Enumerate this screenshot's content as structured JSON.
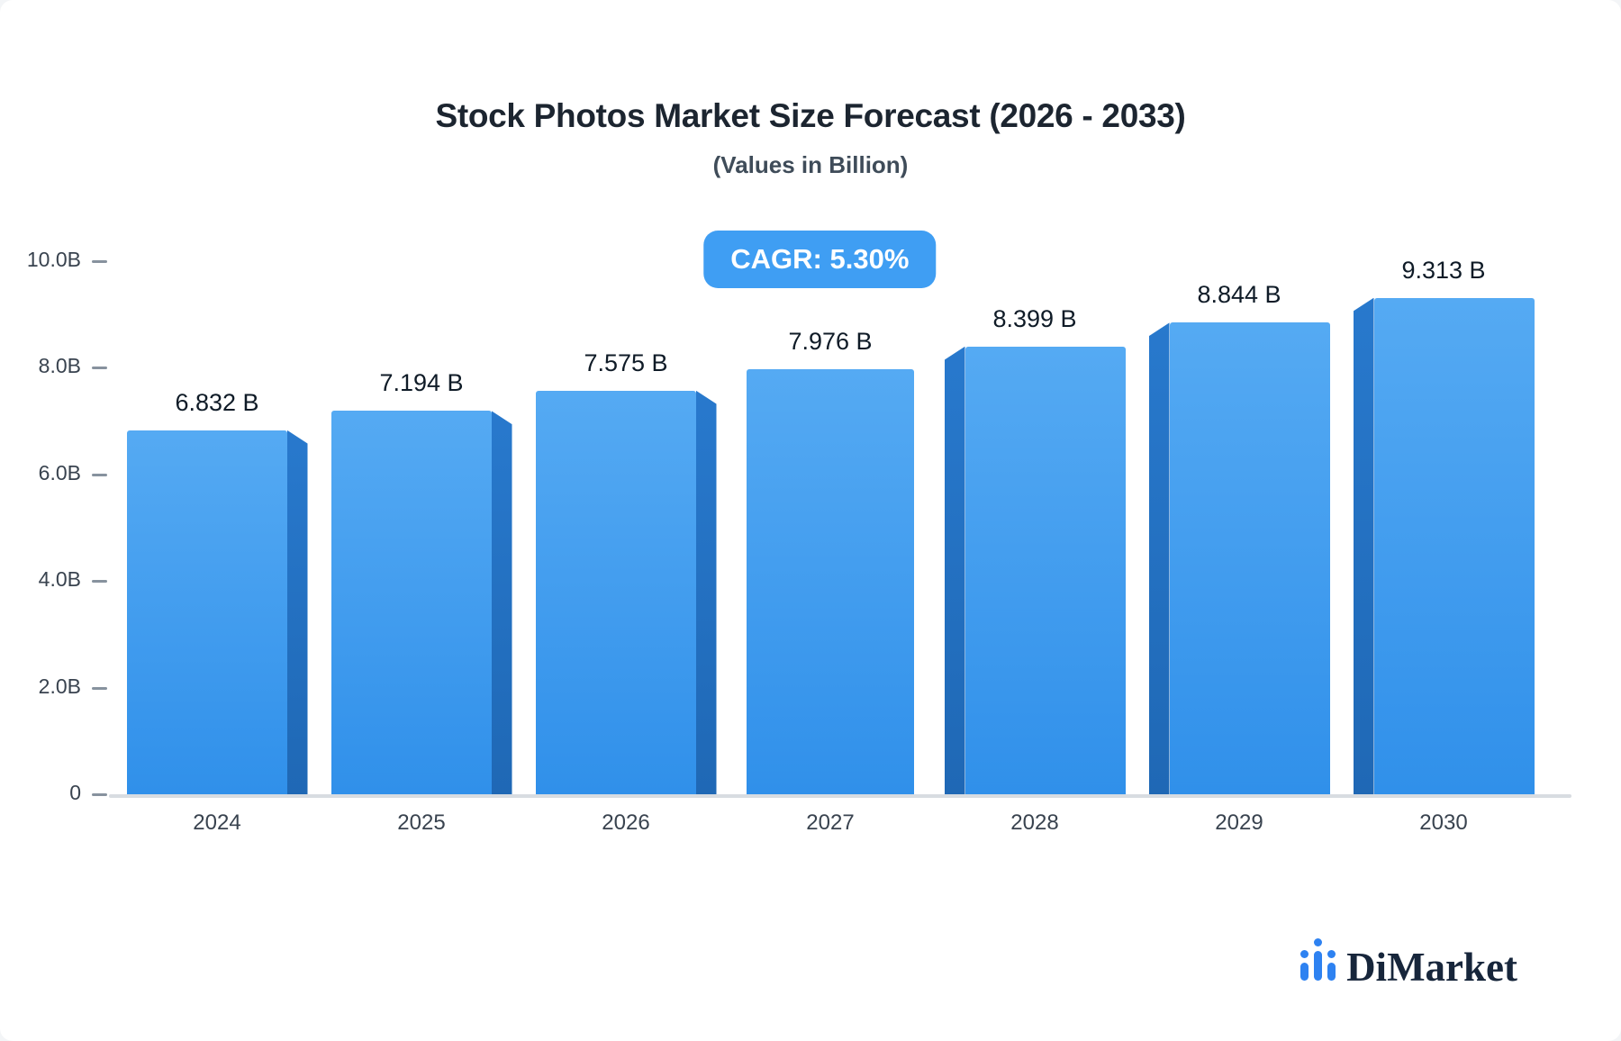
{
  "header": {
    "title": "Stock Photos Market Size Forecast (2026 - 2033)",
    "subtitle": "(Values in Billion)"
  },
  "badge": {
    "label": "CAGR: 5.30%",
    "bg": "#3f9ef3",
    "text_color": "#ffffff"
  },
  "logo": {
    "name": "DiMarket"
  },
  "chart_data": {
    "type": "bar",
    "title": "Stock Photos Market Size Forecast (2026 - 2033)",
    "subtitle": "(Values in Billion)",
    "categories": [
      "2024",
      "2025",
      "2026",
      "2027",
      "2028",
      "2029",
      "2030"
    ],
    "values": [
      6.832,
      7.194,
      7.575,
      7.976,
      8.399,
      8.844,
      9.313
    ],
    "value_labels": [
      "6.832 B",
      "7.194 B",
      "7.575 B",
      "7.976 B",
      "8.399 B",
      "8.844 B",
      "9.313 B"
    ],
    "xlabel": "",
    "ylabel": "",
    "ylim": [
      0,
      10
    ],
    "yticks": [
      {
        "value": 0,
        "label": "0"
      },
      {
        "value": 2,
        "label": "2.0B"
      },
      {
        "value": 4,
        "label": "4.0B"
      },
      {
        "value": 6,
        "label": "6.0B"
      },
      {
        "value": 8,
        "label": "8.0B"
      },
      {
        "value": 10,
        "label": "10.0B"
      }
    ],
    "grid": false,
    "legend": "none",
    "annotations": [
      "CAGR: 5.30%"
    ],
    "colors": {
      "bar_face_top": "#55aaf3",
      "bar_face_bottom": "#3090ea",
      "bar_side_top": "#2879cd",
      "bar_side_bottom": "#1f68b5",
      "baseline": "#d8dce1",
      "axis_text": "#39434f",
      "label_text": "#0f1b27",
      "title_text": "#1c2530",
      "subtitle_text": "#3f4c59",
      "logo_blue": "#2e82f1"
    }
  }
}
